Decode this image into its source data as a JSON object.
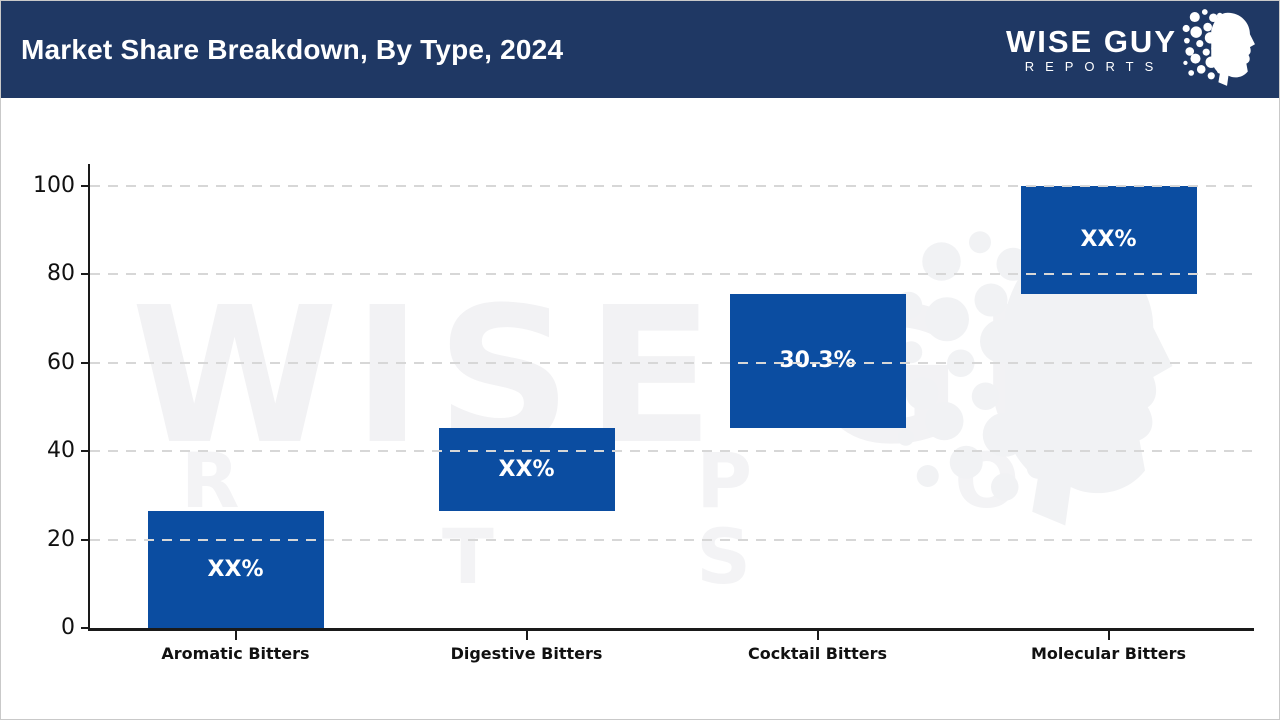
{
  "header": {
    "title": "Market Share Breakdown, By Type, 2024",
    "logo": {
      "line1": "WISE GUY",
      "line2": "REPORTS"
    }
  },
  "watermark": {
    "line1": "WISE GU",
    "line2": "R E P O R T S"
  },
  "colors": {
    "header_bg": "#1F3864",
    "bar": "#0B4DA1",
    "bar_label": "#FFFFFF",
    "gridline": "#D7D7D7",
    "axis": "#1A1A1A",
    "watermark": "#F1F2F4",
    "page_bg": "#FFFFFF",
    "border": "#C9C9C9"
  },
  "chart_data": {
    "type": "waterfall",
    "title": "Market Share Breakdown, By Type, 2024",
    "categories": [
      "Aromatic Bitters",
      "Digestive Bitters",
      "Cocktail Bitters",
      "Molecular Bitters"
    ],
    "segments": [
      {
        "category": "Aromatic Bitters",
        "start": 0,
        "end": 26.4,
        "label": "XX%"
      },
      {
        "category": "Digestive Bitters",
        "start": 26.4,
        "end": 45.2,
        "label": "XX%"
      },
      {
        "category": "Cocktail Bitters",
        "start": 45.2,
        "end": 75.5,
        "label": "30.3%"
      },
      {
        "category": "Molecular Bitters",
        "start": 75.5,
        "end": 100,
        "label": "XX%"
      }
    ],
    "yticks": [
      0,
      20,
      40,
      60,
      80,
      100
    ],
    "ylim": [
      0,
      105
    ],
    "xlabel": "",
    "ylabel": "",
    "grid": "dashed-horizontal-over-bars",
    "legend": null,
    "bar_color": "#0B4DA1",
    "value_label_color": "#FFFFFF"
  }
}
